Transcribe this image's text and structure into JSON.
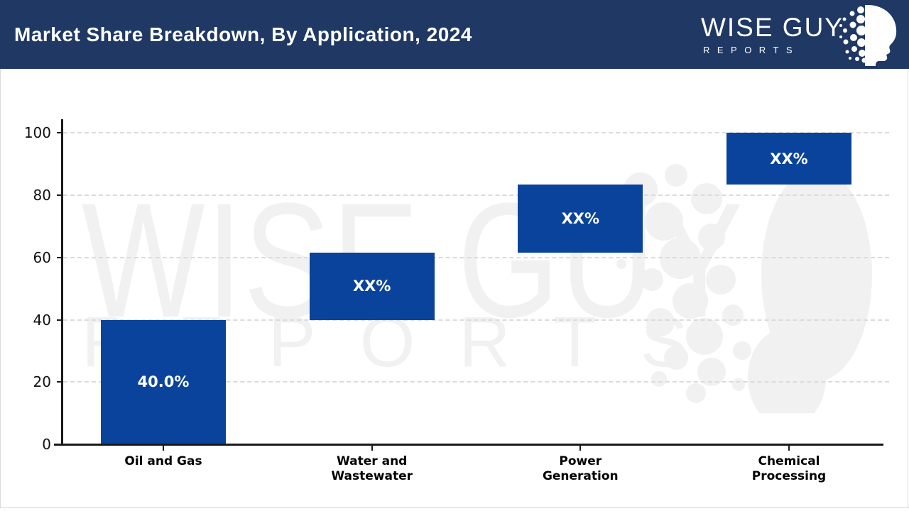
{
  "header": {
    "title": "Market Share Breakdown, By Application, 2024",
    "logo": {
      "brand_top": "WISE GUY",
      "brand_bottom": "REPORTS"
    }
  },
  "watermark": {
    "big_text": "WISE GUY",
    "small_text": "REPORTS"
  },
  "colors": {
    "header_bg": "#1F3864",
    "bar": "#09439B",
    "grid": "#DBDBDB",
    "axis": "#1A1A1A",
    "watermark": "#F1F1F1",
    "bar_label_text": "#FFFFFF"
  },
  "chart_data": {
    "type": "bar",
    "variant": "waterfall",
    "title": "Market Share Breakdown, By Application, 2024",
    "categories": [
      "Oil and Gas",
      "Water and Wastewater",
      "Power Generation",
      "Chemical Processing"
    ],
    "bar_starts": [
      0,
      40,
      61.5,
      83.5
    ],
    "bar_ends": [
      40,
      61.5,
      83.5,
      100
    ],
    "bar_labels": [
      "40.0%",
      "XX%",
      "XX%",
      "XX%"
    ],
    "segment_sizes_pct": [
      40.0,
      21.5,
      22.0,
      16.5
    ],
    "xlabel": "",
    "ylabel": "",
    "ylim": [
      0,
      100
    ],
    "yticks": [
      0,
      20,
      40,
      60,
      80,
      100
    ],
    "grid": "horizontal-dashed",
    "legend": "none",
    "bar_color": "#09439B"
  }
}
